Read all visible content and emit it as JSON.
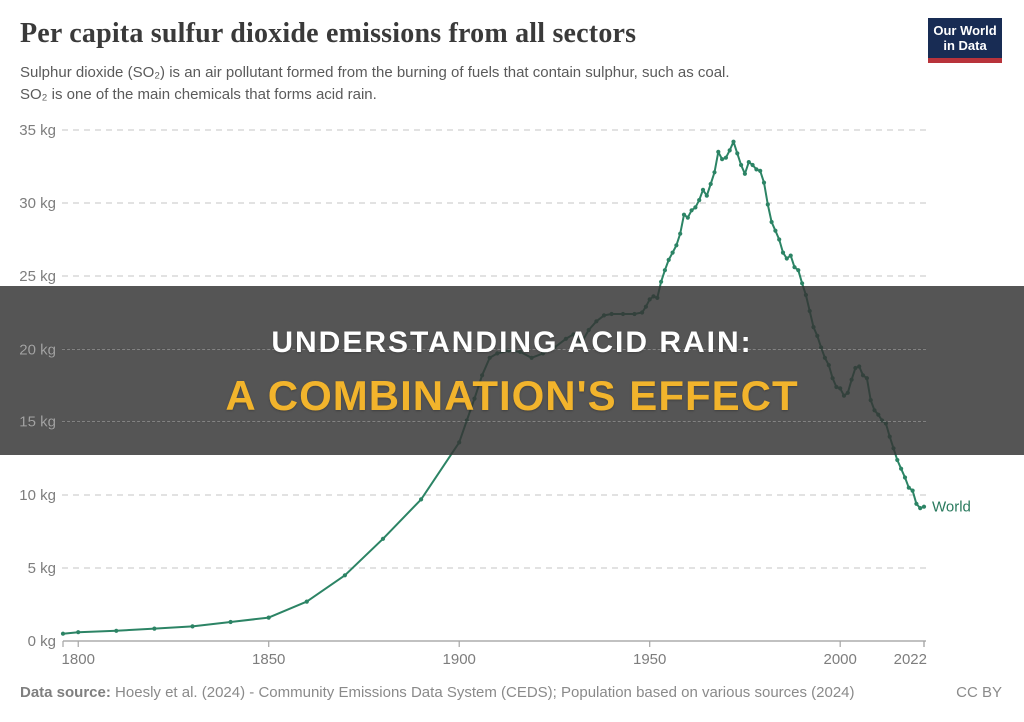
{
  "header": {
    "title": "Per capita sulfur dioxide emissions from all sectors",
    "subtitle_line1": "Sulphur dioxide (SO₂) is an air pollutant formed from the burning of fuels that contain sulphur, such as coal.",
    "subtitle_line2": "SO₂ is one of the main chemicals that forms acid rain.",
    "logo": {
      "line1": "Our World",
      "line2": "in Data",
      "bg_color": "#182C54",
      "accent_color": "#B8333B"
    }
  },
  "overlay_banner": {
    "line1": "UNDERSTANDING ACID RAIN:",
    "line2": "A COMBINATION'S EFFECT",
    "line1_color": "#FFFFFF",
    "line2_color": "#F2B42C"
  },
  "chart_data": {
    "type": "line",
    "title": "Per capita sulfur dioxide emissions from all sectors",
    "series_name": "World",
    "line_color": "#2C8465",
    "world_label_color": "#2A7A5E",
    "unit": "kg",
    "xlim": [
      1796,
      2022
    ],
    "ylim": [
      0,
      35
    ],
    "grid": true,
    "legend_position": "end-of-line",
    "x_tick_years": [
      1800,
      1850,
      1900,
      1950,
      2000,
      2022
    ],
    "y_tick_values": [
      0,
      5,
      10,
      15,
      20,
      25,
      30,
      35
    ],
    "y_tick_labels": [
      "0 kg",
      "5 kg",
      "10 kg",
      "15 kg",
      "20 kg",
      "25 kg",
      "30 kg",
      "35 kg"
    ],
    "x": [
      1796,
      1800,
      1810,
      1820,
      1830,
      1840,
      1850,
      1860,
      1870,
      1880,
      1890,
      1900,
      1902,
      1904,
      1906,
      1908,
      1910,
      1913,
      1916,
      1919,
      1922,
      1925,
      1928,
      1930,
      1932,
      1934,
      1936,
      1938,
      1940,
      1943,
      1946,
      1948,
      1949,
      1950,
      1951,
      1952,
      1953,
      1954,
      1955,
      1956,
      1957,
      1958,
      1959,
      1960,
      1961,
      1962,
      1963,
      1964,
      1965,
      1966,
      1967,
      1968,
      1969,
      1970,
      1971,
      1972,
      1973,
      1974,
      1975,
      1976,
      1977,
      1978,
      1979,
      1980,
      1981,
      1982,
      1983,
      1984,
      1985,
      1986,
      1987,
      1988,
      1989,
      1990,
      1991,
      1992,
      1993,
      1994,
      1995,
      1996,
      1997,
      1998,
      1999,
      2000,
      2001,
      2002,
      2003,
      2004,
      2005,
      2006,
      2007,
      2008,
      2009,
      2010,
      2011,
      2012,
      2013,
      2014,
      2015,
      2016,
      2017,
      2018,
      2019,
      2020,
      2021,
      2022
    ],
    "y": [
      0.5,
      0.6,
      0.7,
      0.85,
      1.0,
      1.3,
      1.6,
      2.7,
      4.5,
      7.0,
      9.7,
      13.6,
      15.1,
      16.6,
      18.2,
      19.4,
      19.7,
      19.9,
      19.8,
      19.4,
      19.7,
      20.1,
      20.7,
      21.0,
      20.4,
      21.3,
      21.9,
      22.3,
      22.4,
      22.4,
      22.4,
      22.5,
      22.9,
      23.4,
      23.6,
      23.5,
      24.6,
      25.4,
      26.1,
      26.6,
      27.1,
      27.9,
      29.2,
      29.0,
      29.5,
      29.7,
      30.2,
      30.9,
      30.5,
      31.3,
      32.1,
      33.5,
      33.0,
      33.1,
      33.6,
      34.2,
      33.4,
      32.6,
      32.0,
      32.8,
      32.6,
      32.3,
      32.2,
      31.4,
      29.9,
      28.7,
      28.1,
      27.5,
      26.6,
      26.2,
      26.4,
      25.6,
      25.4,
      24.5,
      23.7,
      22.6,
      21.5,
      20.9,
      20.1,
      19.4,
      18.9,
      18.0,
      17.4,
      17.3,
      16.8,
      17.0,
      17.9,
      18.7,
      18.8,
      18.2,
      18.0,
      16.5,
      15.8,
      15.5,
      15.1,
      14.9,
      14.0,
      13.2,
      12.4,
      11.8,
      11.2,
      10.5,
      10.3,
      9.4,
      9.1,
      9.2
    ]
  },
  "footer": {
    "source_label": "Data source:",
    "source_text": "Hoesly et al. (2024) - Community Emissions Data System (CEDS); Population based on various sources (2024)",
    "license": "CC BY"
  }
}
